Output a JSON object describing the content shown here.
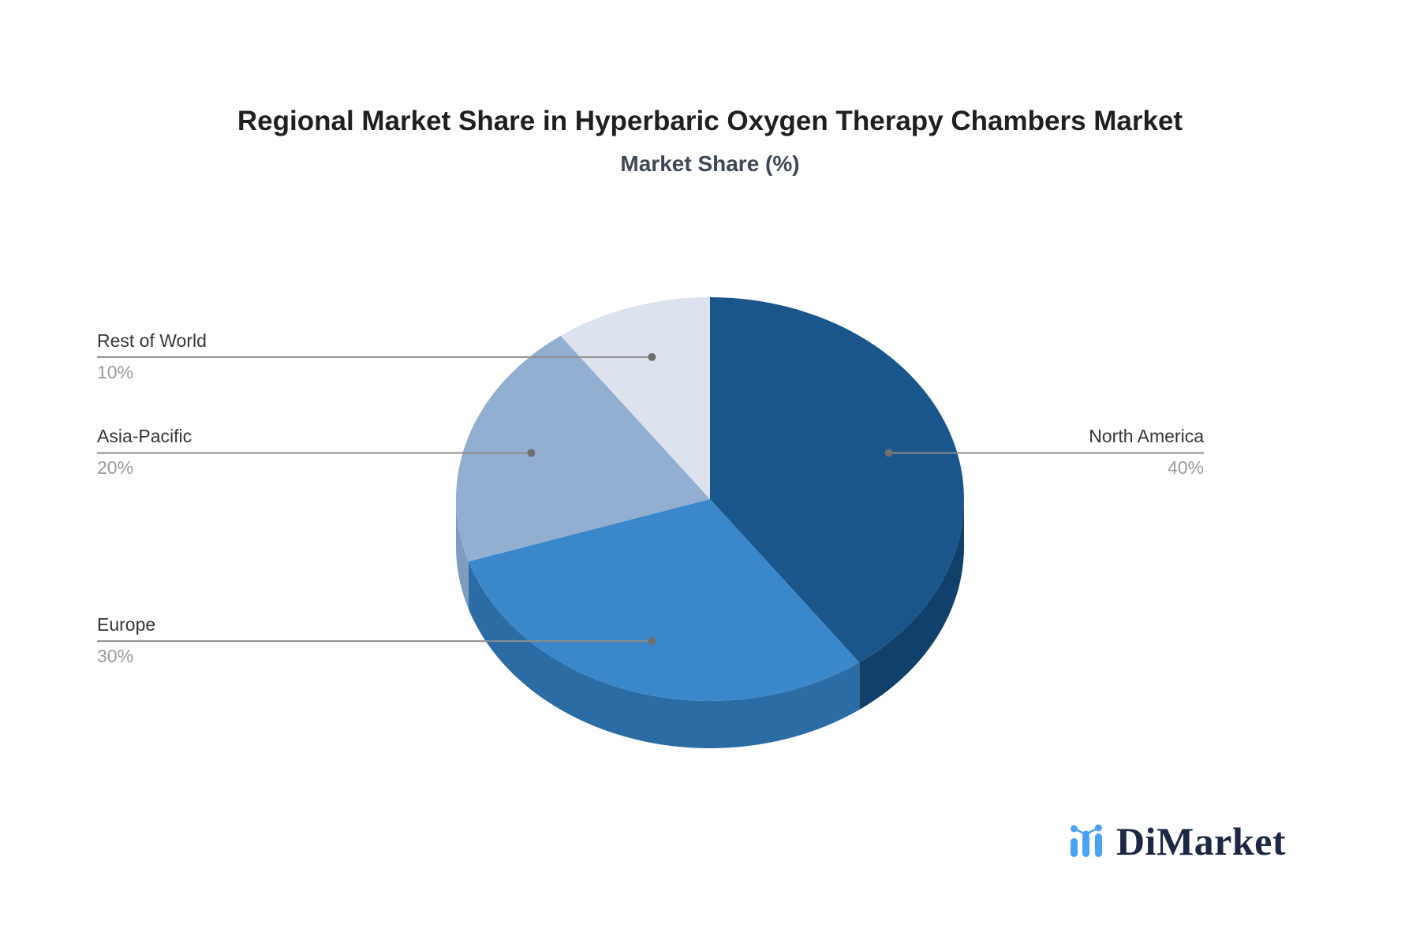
{
  "title": "Regional Market Share in Hyperbaric Oxygen Therapy Chambers Market",
  "subtitle": "Market Share (%)",
  "chart_data": {
    "type": "pie",
    "title": "Regional Market Share in Hyperbaric Oxygen Therapy Chambers Market",
    "subtitle": "Market Share (%)",
    "unit": "%",
    "style": "3d-pie",
    "start_angle_deg": -90,
    "direction": "clockwise",
    "legend": "none",
    "label_line_color": "#8c8c8c",
    "label_dot_color": "#6f6f6f",
    "slices": [
      {
        "label": "North America",
        "value": 40,
        "pct_label": "40%",
        "color": "#1A568C",
        "side_color": "#11416B"
      },
      {
        "label": "Europe",
        "value": 30,
        "pct_label": "30%",
        "color": "#3A88CB",
        "side_color": "#2C6CA5"
      },
      {
        "label": "Asia-Pacific",
        "value": 20,
        "pct_label": "20%",
        "color": "#92AED1",
        "side_color": "#7D9CBF"
      },
      {
        "label": "Rest of World",
        "value": 10,
        "pct_label": "10%",
        "color": "#DCE2EE",
        "side_color": "#C7D1E2"
      }
    ]
  },
  "branding": {
    "logo_text": "DiMarket",
    "logo_icon": "bar-line-chart-icon",
    "logo_icon_color": "#48A2F5",
    "logo_text_color": "#1B2743"
  }
}
